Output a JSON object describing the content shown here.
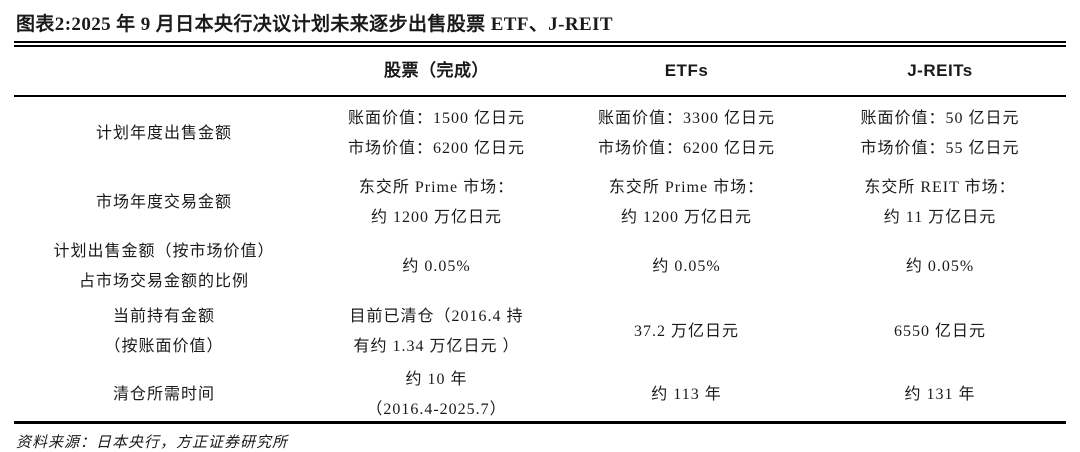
{
  "colors": {
    "background": "#ffffff",
    "text": "#1a1a1a",
    "rule": "#000000"
  },
  "title": "图表2:2025 年 9 月日本央行决议计划未来逐步出售股票 ETF、J-REIT",
  "table": {
    "columns": [
      "",
      "股票（完成）",
      "ETFs",
      "J-REITs"
    ],
    "rows": [
      {
        "label": [
          "计划年度出售金额"
        ],
        "stock": [
          "账面价值：1500 亿日元",
          "市场价值：6200 亿日元"
        ],
        "etfs": [
          "账面价值：3300 亿日元",
          "市场价值：6200 亿日元"
        ],
        "jreits": [
          "账面价值：50 亿日元",
          "市场价值：55 亿日元"
        ]
      },
      {
        "label": [
          "市场年度交易金额"
        ],
        "stock": [
          "东交所 Prime 市场：",
          "约 1200 万亿日元"
        ],
        "etfs": [
          "东交所 Prime 市场：",
          "约 1200 万亿日元"
        ],
        "jreits": [
          "东交所 REIT 市场：",
          "约 11 万亿日元"
        ]
      },
      {
        "label": [
          "计划出售金额（按市场价值）",
          "占市场交易金额的比例"
        ],
        "stock": [
          "约 0.05%"
        ],
        "etfs": [
          "约 0.05%"
        ],
        "jreits": [
          "约 0.05%"
        ]
      },
      {
        "label": [
          "当前持有金额",
          "（按账面价值）"
        ],
        "stock": [
          "目前已清仓（2016.4 持",
          "有约 1.34 万亿日元 ）"
        ],
        "etfs": [
          "37.2 万亿日元"
        ],
        "jreits": [
          "6550 亿日元"
        ]
      },
      {
        "label": [
          "清仓所需时间"
        ],
        "stock": [
          "约 10 年",
          "（2016.4-2025.7）"
        ],
        "etfs": [
          "约 113 年"
        ],
        "jreits": [
          "约 131 年"
        ]
      }
    ]
  },
  "source": "资料来源：日本央行，方正证券研究所"
}
